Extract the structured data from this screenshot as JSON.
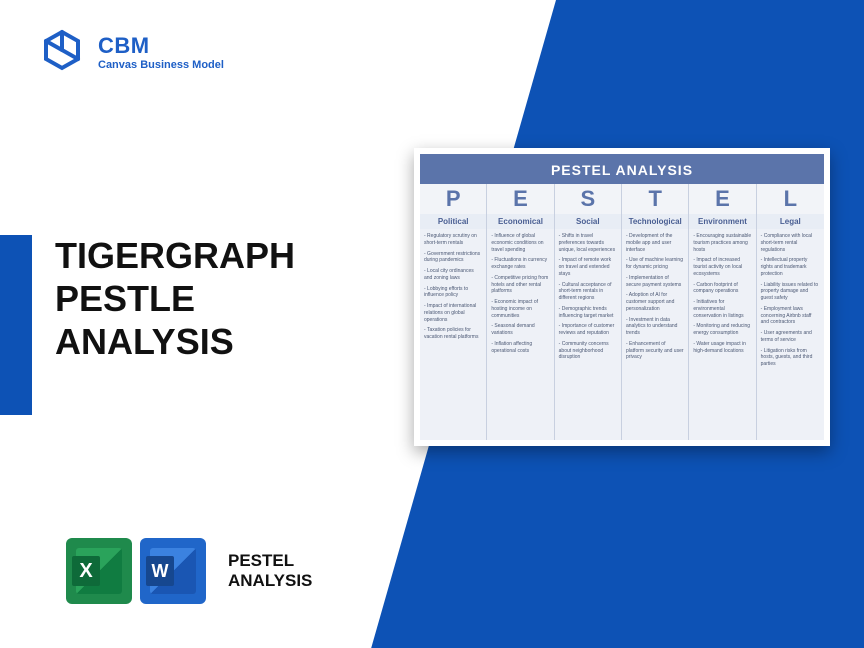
{
  "brand": {
    "name": "CBM",
    "subtitle": "Canvas Business Model"
  },
  "title": {
    "line1": "TIGERGRAPH",
    "line2": "PESTLE",
    "line3": "ANALYSIS"
  },
  "footer": {
    "line1": "PESTEL",
    "line2": "ANALYSIS"
  },
  "card": {
    "title": "PESTEL ANALYSIS",
    "letters": [
      "P",
      "E",
      "S",
      "T",
      "E",
      "L"
    ],
    "headings": [
      "Political",
      "Economical",
      "Social",
      "Technological",
      "Environment",
      "Legal"
    ],
    "columns": [
      [
        "- Regulatory scrutiny on short-term rentals",
        "- Government restrictions during pandemics",
        "- Local city ordinances and zoning laws",
        "- Lobbying efforts to influence policy",
        "- Impact of international relations on global operations",
        "- Taxation policies for vacation rental platforms"
      ],
      [
        "- Influence of global economic conditions on travel spending",
        "- Fluctuations in currency exchange rates",
        "- Competitive pricing from hotels and other rental platforms",
        "- Economic impact of hosting income on communities",
        "- Seasonal demand variations",
        "- Inflation affecting operational costs"
      ],
      [
        "- Shifts in travel preferences towards unique, local experiences",
        "- Impact of remote work on travel and extended stays",
        "- Cultural acceptance of short-term rentals in different regions",
        "- Demographic trends influencing target market",
        "- Importance of customer reviews and reputation",
        "- Community concerns about neighborhood disruption"
      ],
      [
        "- Development of the mobile app and user interface",
        "- Use of machine learning for dynamic pricing",
        "- Implementation of secure payment systems",
        "- Adoption of AI for customer support and personalization",
        "- Investment in data analytics to understand trends",
        "- Enhancement of platform security and user privacy"
      ],
      [
        "- Encouraging sustainable tourism practices among hosts",
        "- Impact of increased tourist activity on local ecosystems",
        "- Carbon footprint of company operations",
        "- Initiatives for environmental conservation in listings",
        "- Monitoring and reducing energy consumption",
        "- Water usage impact in high-demand locations"
      ],
      [
        "- Compliance with local short-term rental regulations",
        "- Intellectual property rights and trademark protection",
        "- Liability issues related to property damage and guest safety",
        "- Employment laws concerning Airbnb staff and contractors",
        "- User agreements and terms of service",
        "- Litigation risks from hosts, guests, and third parties"
      ]
    ]
  },
  "colors": {
    "brand_blue": "#0d52b5",
    "card_blue": "#5b74aa"
  }
}
